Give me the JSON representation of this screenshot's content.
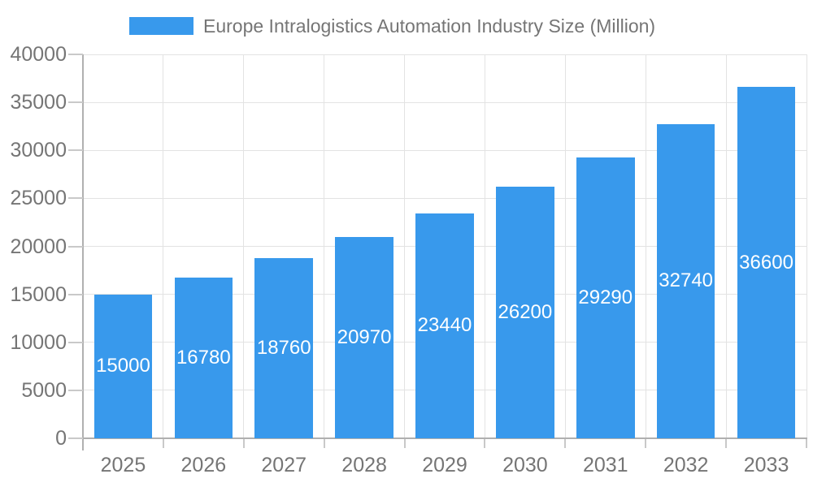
{
  "chart_data": {
    "type": "bar",
    "title": "Europe Intralogistics Automation Industry Size (Million)",
    "categories": [
      "2025",
      "2026",
      "2027",
      "2028",
      "2029",
      "2030",
      "2031",
      "2032",
      "2033"
    ],
    "values": [
      15000,
      16780,
      18760,
      20970,
      23440,
      26200,
      29290,
      32740,
      36600
    ],
    "series": [
      {
        "name": "Europe Intralogistics Automation Industry Size (Million)",
        "values": [
          15000,
          16780,
          18760,
          20970,
          23440,
          26200,
          29290,
          32740,
          36600
        ]
      }
    ],
    "xlabel": "",
    "ylabel": "",
    "ylim": [
      0,
      40000
    ],
    "yticks": [
      0,
      5000,
      10000,
      15000,
      20000,
      25000,
      30000,
      35000,
      40000
    ],
    "grid": true,
    "value_labels": "inside-bar, white, centered",
    "legend_position": "top"
  },
  "legend": {
    "label": "Europe Intralogistics Automation Industry Size (Million)"
  },
  "colors": {
    "bar": "#3899ec",
    "grid": "#e3e3e3",
    "axis": "#b0b0b0",
    "tick": "#c9c9c9",
    "text": "#757575",
    "value_label": "#ffffff",
    "background": "#ffffff"
  }
}
